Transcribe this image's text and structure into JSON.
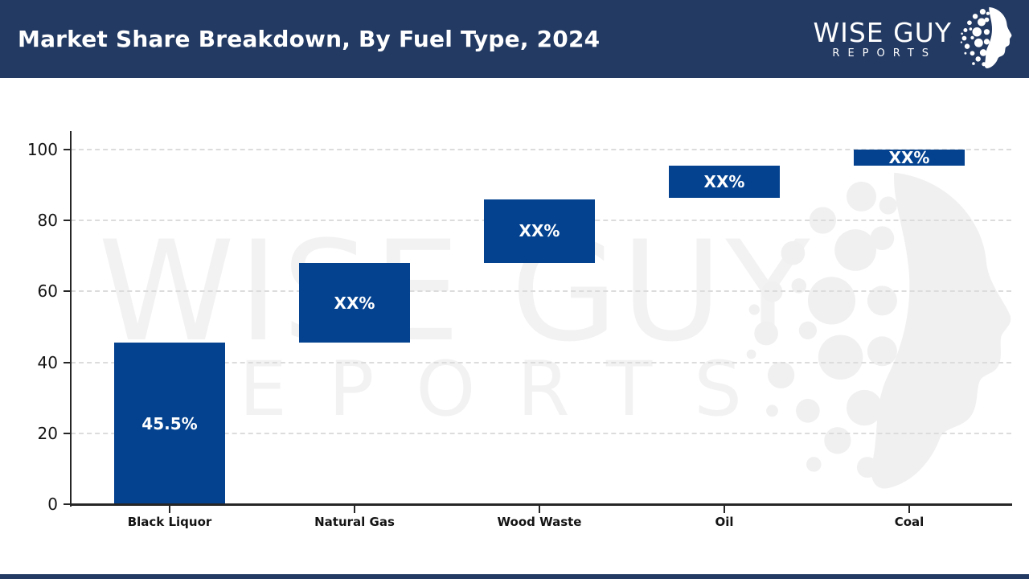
{
  "header": {
    "title": "Market Share Breakdown, By Fuel Type, 2024",
    "brand_line1": "WISE GUY",
    "brand_line2": "REPORTS"
  },
  "watermark": {
    "line1": "WISE GUY",
    "line2": "REPORTS"
  },
  "colors": {
    "header_bg": "#233a63",
    "footer_bg": "#233a63",
    "bar": "#04428f",
    "bar_label": "#ffffff",
    "grid": "#dcdcdc",
    "axis": "#262626",
    "watermark": "#f2f2f2"
  },
  "chart_data": {
    "type": "bar",
    "subtype": "waterfall",
    "title": "Market Share Breakdown, By Fuel Type, 2024",
    "categories": [
      "Black Liquor",
      "Natural Gas",
      "Wood Waste",
      "Oil",
      "Coal"
    ],
    "segments": [
      {
        "category": "Black Liquor",
        "start": 0,
        "end": 45.5,
        "size": 45.5,
        "label": "45.5%"
      },
      {
        "category": "Natural Gas",
        "start": 45.5,
        "end": 68,
        "size": 22.5,
        "label": "XX%"
      },
      {
        "category": "Wood Waste",
        "start": 68,
        "end": 86,
        "size": 18,
        "label": "XX%"
      },
      {
        "category": "Oil",
        "start": 86.5,
        "end": 95.5,
        "size": 9,
        "label": "XX%"
      },
      {
        "category": "Coal",
        "start": 95.5,
        "end": 100,
        "size": 4.5,
        "label": "XX%"
      }
    ],
    "ylim": [
      0,
      100
    ],
    "yticks": [
      0,
      20,
      40,
      60,
      80,
      100
    ],
    "xlabel": "",
    "ylabel": "",
    "grid": "horizontal dashed",
    "legend": "none",
    "bar_label_note": "values shown inside bars; non-first bars masked as XX%"
  }
}
